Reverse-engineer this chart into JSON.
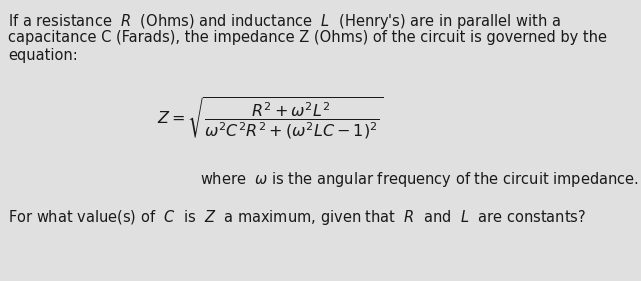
{
  "background_color": "#e0e0e0",
  "text_color": "#1a1a1a",
  "para1_line1": "If a resistance  $R$  (Ohms) and inductance  $L$  (Henry's) are in parallel with a",
  "para1_line2": "capacitance C (Farads), the impedance Z (Ohms) of the circuit is governed by the",
  "para1_line3": "equation:",
  "formula": "$Z = \\sqrt{\\dfrac{R^2 + \\omega^2 L^2}{\\omega^2 C^2 R^2 + (\\omega^2 LC - 1)^2}}$",
  "para2": "where  $\\omega$ is the angular frequency of the circuit impedance.",
  "para3": "For what value(s) of  $C$  is  $Z$  a maximum, given that  $R$  and  $L$  are constants?",
  "font_size_text": 10.5,
  "font_size_formula": 11.5,
  "fig_width": 6.41,
  "fig_height": 2.81,
  "dpi": 100
}
